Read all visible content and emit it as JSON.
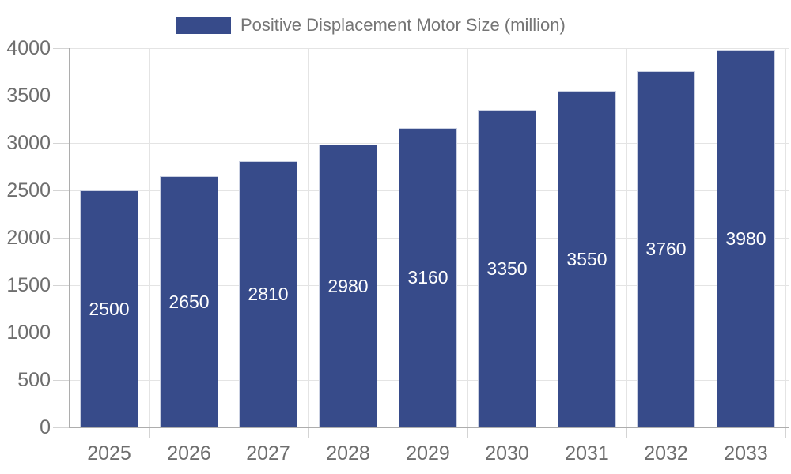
{
  "chart_data": {
    "type": "bar",
    "title": "",
    "legend": {
      "label": "Positive Displacement Motor Size (million)",
      "position": "top"
    },
    "categories": [
      "2025",
      "2026",
      "2027",
      "2028",
      "2029",
      "2030",
      "2031",
      "2032",
      "2033"
    ],
    "series": [
      {
        "name": "Positive Displacement Motor Size (million)",
        "values": [
          2500,
          2650,
          2810,
          2980,
          3160,
          3350,
          3550,
          3760,
          3980
        ]
      }
    ],
    "xlabel": "",
    "ylabel": "",
    "ylim": [
      0,
      4000
    ],
    "yticks": [
      0,
      500,
      1000,
      1500,
      2000,
      2500,
      3000,
      3500,
      4000
    ],
    "grid": true,
    "value_labels_position": "inside-center",
    "colors": {
      "bar": "#374B8A",
      "bar_edge": "#CBD1E2",
      "grid": "#E4E4E4",
      "tick": "#D4D4D4",
      "axis": "#ADADAD",
      "tick_label": "#6E6E6E",
      "legend_text": "#757575",
      "value_label": "#FFFFFF",
      "background": "#FFFFFF"
    }
  }
}
